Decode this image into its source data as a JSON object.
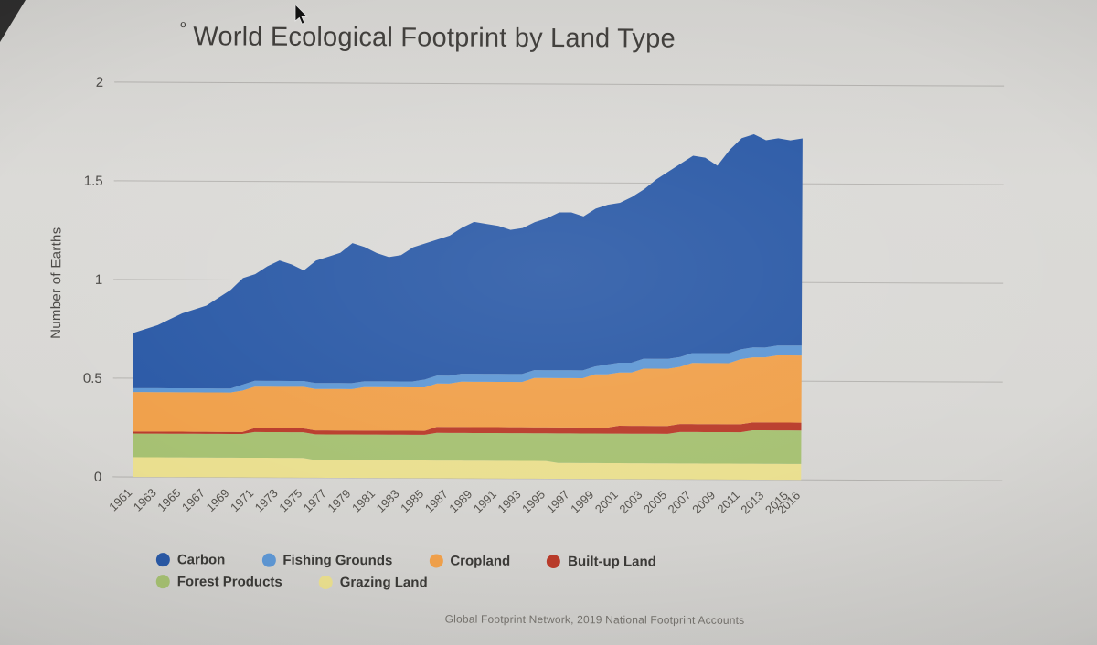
{
  "page": {
    "title_marker": "º",
    "title": "World Ecological Footprint by Land Type",
    "y_axis_label": "Number of Earths",
    "source": "Global Footprint Network, 2019 National Footprint Accounts"
  },
  "chart_data": {
    "type": "area",
    "stacked": true,
    "stack_order": "bottom-to-top",
    "title": "World Ecological Footprint by Land Type",
    "xlabel": "",
    "ylabel": "Number of Earths",
    "ylim": [
      0,
      2
    ],
    "grid": "horizontal",
    "y_ticks": [
      0,
      0.5,
      1,
      1.5,
      2
    ],
    "y_tick_labels": [
      "0",
      "0.5",
      "1",
      "1.5",
      "2"
    ],
    "x_tick_years": [
      1961,
      1963,
      1965,
      1967,
      1969,
      1971,
      1973,
      1975,
      1977,
      1979,
      1981,
      1983,
      1985,
      1987,
      1989,
      1991,
      1993,
      1995,
      1997,
      1999,
      2001,
      2003,
      2005,
      2007,
      2009,
      2011,
      2013,
      2015,
      2016
    ],
    "categories": [
      1961,
      1962,
      1963,
      1964,
      1965,
      1966,
      1967,
      1968,
      1969,
      1970,
      1971,
      1972,
      1973,
      1974,
      1975,
      1976,
      1977,
      1978,
      1979,
      1980,
      1981,
      1982,
      1983,
      1984,
      1985,
      1986,
      1987,
      1988,
      1989,
      1990,
      1991,
      1992,
      1993,
      1994,
      1995,
      1996,
      1997,
      1998,
      1999,
      2000,
      2001,
      2002,
      2003,
      2004,
      2005,
      2006,
      2007,
      2008,
      2009,
      2010,
      2011,
      2012,
      2013,
      2014,
      2015,
      2016
    ],
    "series": [
      {
        "id": "grazing-land",
        "name": "Grazing Land",
        "color": "#eadf8f",
        "values": [
          0.1,
          0.1,
          0.1,
          0.1,
          0.1,
          0.1,
          0.1,
          0.1,
          0.1,
          0.1,
          0.1,
          0.1,
          0.1,
          0.1,
          0.1,
          0.09,
          0.09,
          0.09,
          0.09,
          0.09,
          0.09,
          0.09,
          0.09,
          0.09,
          0.09,
          0.09,
          0.09,
          0.09,
          0.09,
          0.09,
          0.09,
          0.09,
          0.09,
          0.09,
          0.09,
          0.08,
          0.08,
          0.08,
          0.08,
          0.08,
          0.08,
          0.08,
          0.08,
          0.08,
          0.08,
          0.08,
          0.08,
          0.08,
          0.08,
          0.08,
          0.08,
          0.08,
          0.08,
          0.08,
          0.08,
          0.08
        ]
      },
      {
        "id": "forest-products",
        "name": "Forest Products",
        "color": "#a6c172",
        "values": [
          0.12,
          0.12,
          0.12,
          0.12,
          0.12,
          0.12,
          0.12,
          0.12,
          0.12,
          0.12,
          0.13,
          0.13,
          0.13,
          0.13,
          0.13,
          0.13,
          0.13,
          0.13,
          0.13,
          0.13,
          0.13,
          0.13,
          0.13,
          0.13,
          0.13,
          0.14,
          0.14,
          0.14,
          0.14,
          0.14,
          0.14,
          0.14,
          0.14,
          0.14,
          0.14,
          0.15,
          0.15,
          0.15,
          0.15,
          0.15,
          0.15,
          0.15,
          0.15,
          0.15,
          0.15,
          0.16,
          0.16,
          0.16,
          0.16,
          0.16,
          0.16,
          0.17,
          0.17,
          0.17,
          0.17,
          0.17
        ]
      },
      {
        "id": "built-up-land",
        "name": "Built-up Land",
        "color": "#b93b2a",
        "values": [
          0.01,
          0.01,
          0.01,
          0.01,
          0.01,
          0.01,
          0.01,
          0.01,
          0.01,
          0.01,
          0.02,
          0.02,
          0.02,
          0.02,
          0.02,
          0.02,
          0.02,
          0.02,
          0.02,
          0.02,
          0.02,
          0.02,
          0.02,
          0.02,
          0.02,
          0.03,
          0.03,
          0.03,
          0.03,
          0.03,
          0.03,
          0.03,
          0.03,
          0.03,
          0.03,
          0.03,
          0.03,
          0.03,
          0.03,
          0.03,
          0.04,
          0.04,
          0.04,
          0.04,
          0.04,
          0.04,
          0.04,
          0.04,
          0.04,
          0.04,
          0.04,
          0.04,
          0.04,
          0.04,
          0.04,
          0.04
        ]
      },
      {
        "id": "cropland",
        "name": "Cropland",
        "color": "#f0a04a",
        "values": [
          0.2,
          0.2,
          0.2,
          0.2,
          0.2,
          0.2,
          0.2,
          0.2,
          0.2,
          0.21,
          0.21,
          0.21,
          0.21,
          0.21,
          0.21,
          0.21,
          0.21,
          0.21,
          0.21,
          0.22,
          0.22,
          0.22,
          0.22,
          0.22,
          0.22,
          0.22,
          0.22,
          0.23,
          0.23,
          0.23,
          0.23,
          0.23,
          0.23,
          0.25,
          0.25,
          0.25,
          0.25,
          0.25,
          0.27,
          0.27,
          0.27,
          0.27,
          0.29,
          0.29,
          0.29,
          0.29,
          0.31,
          0.31,
          0.31,
          0.31,
          0.33,
          0.33,
          0.33,
          0.34,
          0.34,
          0.34
        ]
      },
      {
        "id": "fishing-grounds",
        "name": "Fishing Grounds",
        "color": "#5e97d4",
        "values": [
          0.02,
          0.02,
          0.02,
          0.02,
          0.02,
          0.02,
          0.02,
          0.02,
          0.02,
          0.03,
          0.03,
          0.03,
          0.03,
          0.03,
          0.03,
          0.03,
          0.03,
          0.03,
          0.03,
          0.03,
          0.03,
          0.03,
          0.03,
          0.03,
          0.04,
          0.04,
          0.04,
          0.04,
          0.04,
          0.04,
          0.04,
          0.04,
          0.04,
          0.04,
          0.04,
          0.04,
          0.04,
          0.04,
          0.04,
          0.05,
          0.05,
          0.05,
          0.05,
          0.05,
          0.05,
          0.05,
          0.05,
          0.05,
          0.05,
          0.05,
          0.05,
          0.05,
          0.05,
          0.05,
          0.05,
          0.05
        ]
      },
      {
        "id": "carbon",
        "name": "Carbon",
        "color": "#2a59a6",
        "values": [
          0.28,
          0.3,
          0.32,
          0.35,
          0.38,
          0.4,
          0.42,
          0.46,
          0.5,
          0.54,
          0.54,
          0.58,
          0.61,
          0.59,
          0.56,
          0.62,
          0.64,
          0.66,
          0.71,
          0.68,
          0.65,
          0.63,
          0.64,
          0.68,
          0.69,
          0.69,
          0.71,
          0.74,
          0.77,
          0.76,
          0.75,
          0.73,
          0.74,
          0.75,
          0.77,
          0.8,
          0.8,
          0.78,
          0.8,
          0.81,
          0.81,
          0.84,
          0.86,
          0.91,
          0.95,
          0.98,
          1.0,
          0.99,
          0.95,
          1.03,
          1.07,
          1.08,
          1.05,
          1.05,
          1.04,
          1.05
        ]
      }
    ],
    "legend": {
      "position": "bottom",
      "rows": [
        [
          "Carbon",
          "Fishing Grounds",
          "Cropland",
          "Built-up Land"
        ],
        [
          "Forest Products",
          "Grazing Land"
        ]
      ]
    }
  }
}
